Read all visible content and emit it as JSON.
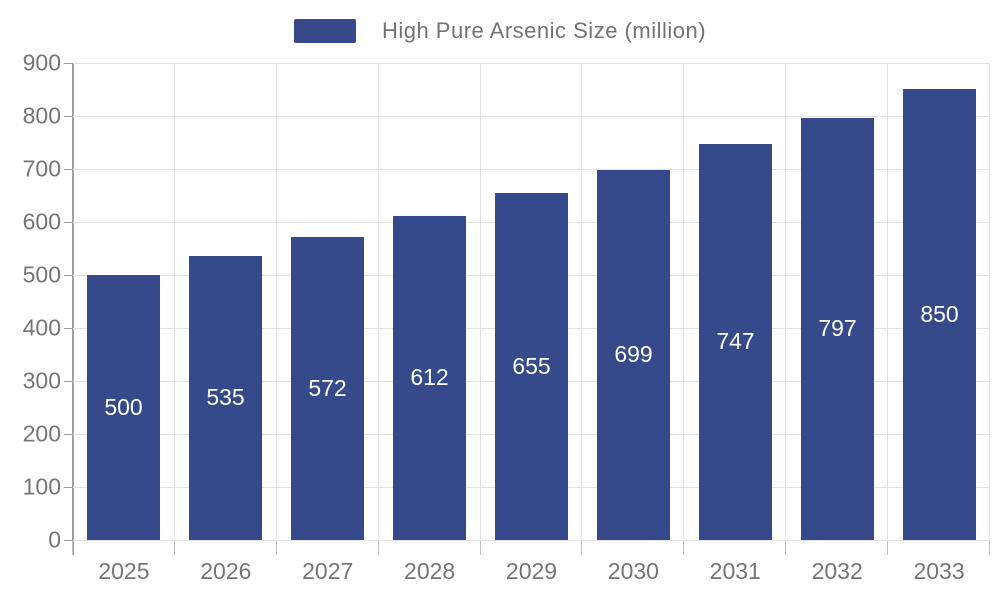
{
  "legend": {
    "label": "High Pure Arsenic Size (million)",
    "swatch_color": "#36498b"
  },
  "chart_data": {
    "type": "bar",
    "categories": [
      "2025",
      "2026",
      "2027",
      "2028",
      "2029",
      "2030",
      "2031",
      "2032",
      "2033"
    ],
    "series": [
      {
        "name": "High Pure Arsenic Size (million)",
        "values": [
          500,
          535,
          572,
          612,
          655,
          699,
          747,
          797,
          850
        ]
      }
    ],
    "title": "",
    "xlabel": "",
    "ylabel": "",
    "ylim": [
      0,
      900
    ],
    "yticks": [
      0,
      100,
      200,
      300,
      400,
      500,
      600,
      700,
      800,
      900
    ],
    "grid": true,
    "legend_position": "top",
    "bar_color": "#36498b",
    "bar_label_color": "#ffffff",
    "axis_text_color": "#757575",
    "grid_color": "#e3e3e3"
  }
}
